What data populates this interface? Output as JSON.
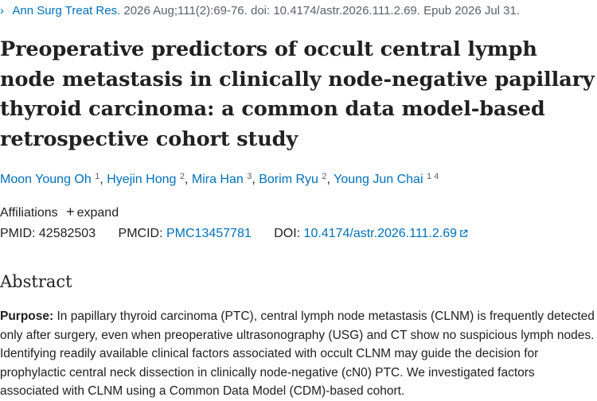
{
  "citation": {
    "journal": "Ann Surg Treat Res.",
    "details": "2026 Aug;111(2):69-76. doi: 10.4174/astr.2026.111.2.69. Epub 2026 Jul 31."
  },
  "title": "Preoperative predictors of occult central lymph node metastasis in clinically node-negative papillary thyroid carcinoma: a common data model-based retrospective cohort study",
  "authors": [
    {
      "name": "Moon Young Oh",
      "aff": "1"
    },
    {
      "name": "Hyejin Hong",
      "aff": "2"
    },
    {
      "name": "Mira Han",
      "aff": "3"
    },
    {
      "name": "Borim Ryu",
      "aff": "2"
    },
    {
      "name": "Young Jun Chai",
      "aff": "1 4"
    }
  ],
  "affiliations": {
    "label": "Affiliations",
    "expand_label": "expand",
    "expand_icon": "plus-icon"
  },
  "identifiers": {
    "pmid_label": "PMID:",
    "pmid": "42582503",
    "pmcid_label": "PMCID:",
    "pmcid": "PMC13457781",
    "doi_label": "DOI:",
    "doi": "10.4174/astr.2026.111.2.69",
    "doi_icon": "external-link-icon"
  },
  "abstract": {
    "heading": "Abstract",
    "purpose_label": "Purpose:",
    "purpose_text": "In papillary thyroid carcinoma (PTC), central lymph node metastasis (CLNM) is frequently detected only after surgery, even when preoperative ultrasonography (USG) and CT show no suspicious lymph nodes. Identifying readily available clinical factors associated with occult CLNM may guide the decision for prophylactic central neck dissection in clinically node-negative (cN0) PTC. We investigated factors associated with CLNM using a Common Data Model (CDM)-based cohort."
  },
  "colors": {
    "link": "#0071bc",
    "text": "#212121",
    "muted": "#5b616b"
  }
}
